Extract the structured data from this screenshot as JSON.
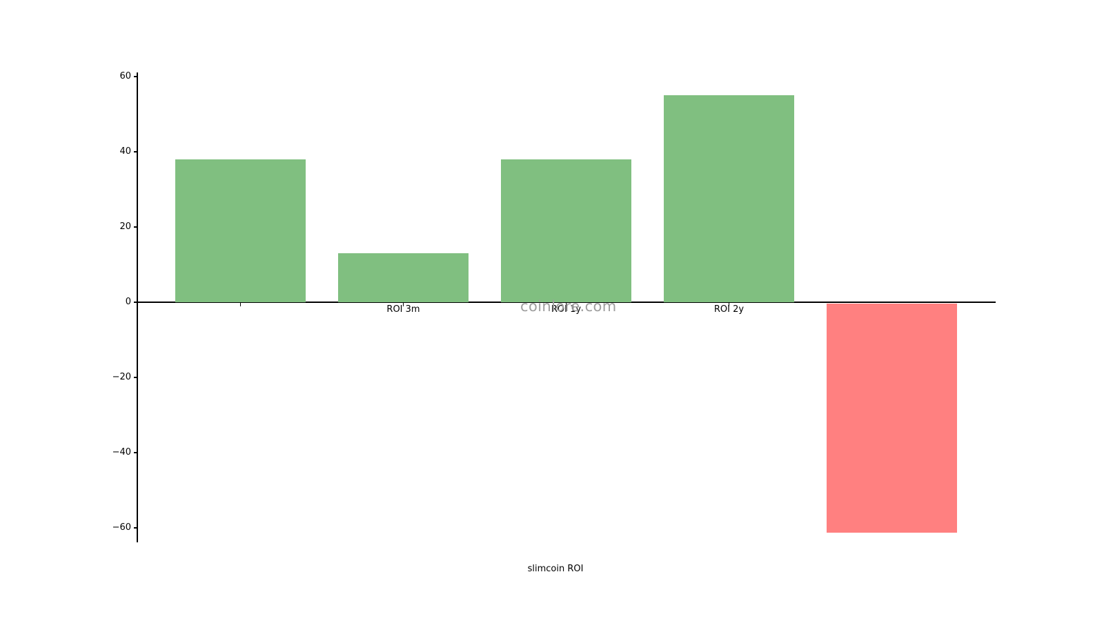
{
  "watermark": "coinlore.com",
  "chart_data": {
    "type": "bar",
    "title": "",
    "xlabel": "slimcoin ROI",
    "ylabel": "",
    "categories": [
      "",
      "ROI 3m",
      "ROI 1y",
      "ROI 2y",
      ""
    ],
    "values": [
      38,
      13,
      38,
      55,
      -61
    ],
    "yticks": [
      60,
      40,
      20,
      0,
      -20,
      -40,
      -60
    ],
    "ytick_labels": [
      "60",
      "40",
      "20",
      "0",
      "−20",
      "−40",
      "−60"
    ],
    "ylim": [
      -64,
      61
    ],
    "x_ticks_visible": [
      true,
      true,
      true,
      true,
      false
    ],
    "grid": false,
    "legend": false,
    "colors": {
      "positive_bar": "#80bf80",
      "negative_bar": "#ff8080",
      "axis": "#000000",
      "watermark": "#9e9e9e"
    }
  }
}
